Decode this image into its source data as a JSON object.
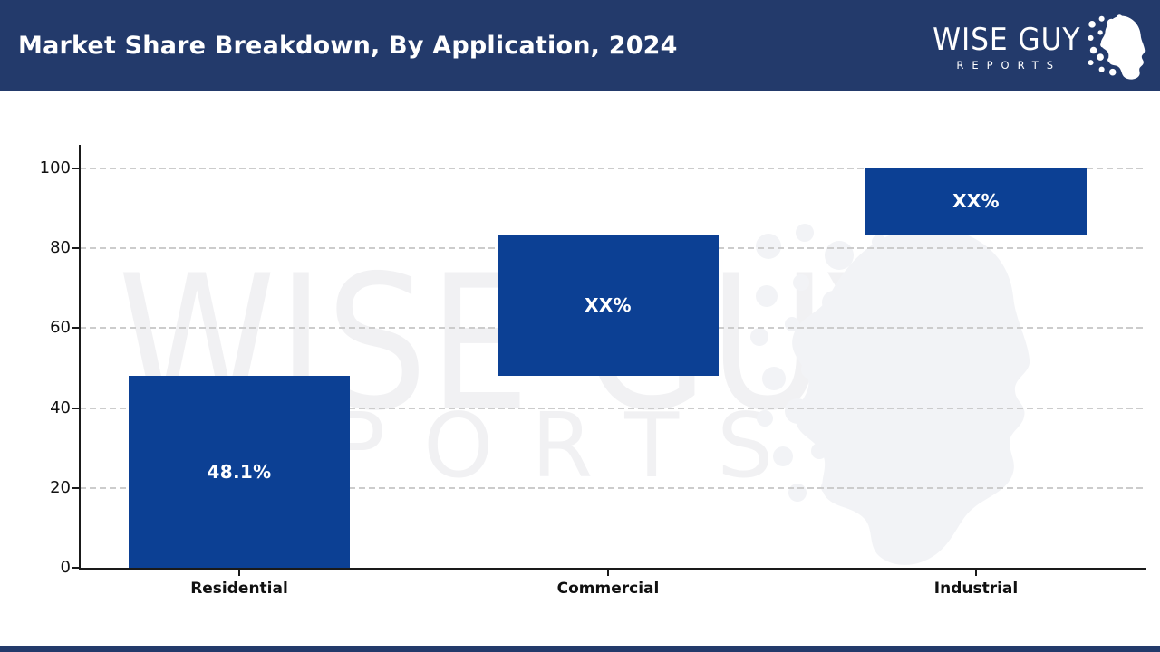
{
  "header": {
    "title": "Market Share Breakdown, By Application, 2024",
    "logo": {
      "line1": "WISE GUY",
      "line2": "REPORTS"
    }
  },
  "watermark": {
    "line1": "WISE GUY",
    "line2": "REPORTS",
    "head_icon": "dotted-face-profile"
  },
  "colors": {
    "header_bg": "#233A6B",
    "bar": "#0C4094",
    "bar_label": "#ffffff",
    "axis": "#1a1a1a",
    "grid": "#cccccc",
    "watermark": "#f1f1f3",
    "text": "#111111"
  },
  "chart_data": {
    "type": "bar",
    "subtype": "floating-waterfall-segments",
    "title": "Market Share Breakdown, By Application, 2024",
    "categories": [
      "Residential",
      "Commercial",
      "Industrial"
    ],
    "bars": [
      {
        "category": "Residential",
        "start": 0,
        "end": 48.1,
        "label": "48.1%"
      },
      {
        "category": "Commercial",
        "start": 48.1,
        "end": 83.5,
        "label": "XX%"
      },
      {
        "category": "Industrial",
        "start": 83.5,
        "end": 100,
        "label": "XX%"
      }
    ],
    "yticks": [
      0,
      20,
      40,
      60,
      80,
      100
    ],
    "ylim": [
      0,
      106
    ],
    "xlabel": "",
    "ylabel": "",
    "grid": {
      "axis": "y",
      "style": "dashed",
      "color": "#cccccc"
    },
    "legend": "none",
    "bar_color": "#0C4094",
    "bar_label_color": "#ffffff"
  }
}
